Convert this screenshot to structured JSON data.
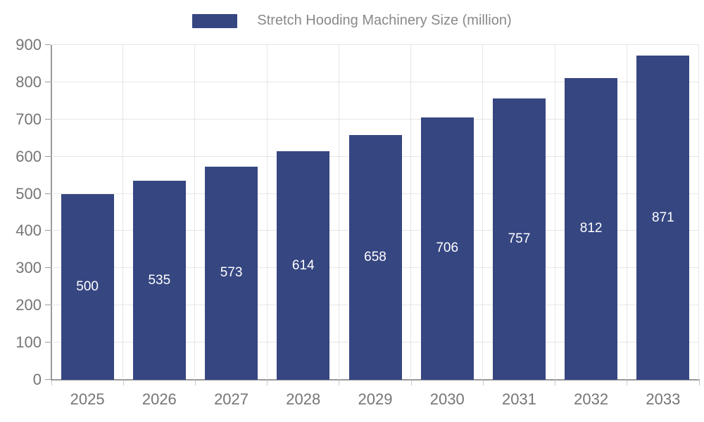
{
  "legend": {
    "label": "Stretch Hooding Machinery Size (million)"
  },
  "chart_data": {
    "type": "bar",
    "title": "Stretch Hooding Machinery Size (million)",
    "categories": [
      "2025",
      "2026",
      "2027",
      "2028",
      "2029",
      "2030",
      "2031",
      "2032",
      "2033"
    ],
    "values": [
      500,
      535,
      573,
      614,
      658,
      706,
      757,
      812,
      871
    ],
    "xlabel": "",
    "ylabel": "",
    "ylim": [
      0,
      900
    ],
    "ytick_interval": 100,
    "grid": true,
    "legend_position": "top",
    "bar_color": "#364681",
    "value_label_color": "#ffffff",
    "value_label_position": "middle-inside",
    "axis_label_color": "#757575",
    "legend_text_color": "#898989",
    "gridline_color": "#e6e6e6",
    "axis_line_color": "#999999",
    "background_color": "#ffffff"
  }
}
